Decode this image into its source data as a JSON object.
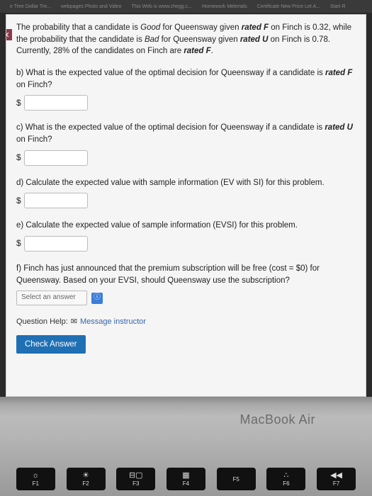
{
  "browser": {
    "tabs": [
      "e Tree Dollar Tre...",
      "webpages Photo and Video",
      "This Web is www.chegg.c...",
      "Homework Meterials",
      "Certificate New Price Let A...",
      "Start R"
    ]
  },
  "close_icon": "✕",
  "intro": {
    "line1_a": "The probability that a candidate is ",
    "good": "Good",
    "line1_b": " for Queensway given ",
    "ratedF": "rated F",
    "line1_c": " on Finch is 0.32, while the probability that the candidate is ",
    "bad": "Bad",
    "line1_d": " for Queensway given ",
    "ratedU": "rated U",
    "line1_e": " on Finch is 0.78. Currently, 28% of the candidates on Finch are ",
    "ratedF2": "rated F",
    "period": "."
  },
  "parts": {
    "b": {
      "text_a": "b) What is the expected value of the optimal decision for Queensway if a candidate is ",
      "bold": "rated F",
      "text_b": " on Finch?"
    },
    "c": {
      "text_a": "c) What is the expected value of the optimal decision for Queensway if a candidate is ",
      "bold": "rated U",
      "text_b": " on Finch?"
    },
    "d": {
      "text": "d) Calculate the expected value with sample information (EV with SI) for this problem."
    },
    "e": {
      "text": "e) Calculate the expected value of sample information (EVSI) for this problem."
    },
    "f": {
      "text": "f) Finch has just announced that the premium subscription will be free (cost = $0) for Queensway. Based on your EVSI, should Queensway use the subscription?",
      "select_placeholder": "Select an answer"
    }
  },
  "dollar": "$",
  "help": {
    "label": "Question Help:",
    "link": "Message instructor"
  },
  "check_button": "Check Answer",
  "laptop": {
    "brand": "MacBook Air",
    "keys": [
      {
        "sym": "☼",
        "label": "F1"
      },
      {
        "sym": "☀",
        "label": "F2"
      },
      {
        "sym": "⊟▢",
        "label": "F3"
      },
      {
        "sym": "▦",
        "label": "F4"
      },
      {
        "sym": "",
        "label": "F5"
      },
      {
        "sym": "∴",
        "label": "F6"
      },
      {
        "sym": "◀◀",
        "label": "F7"
      }
    ]
  }
}
